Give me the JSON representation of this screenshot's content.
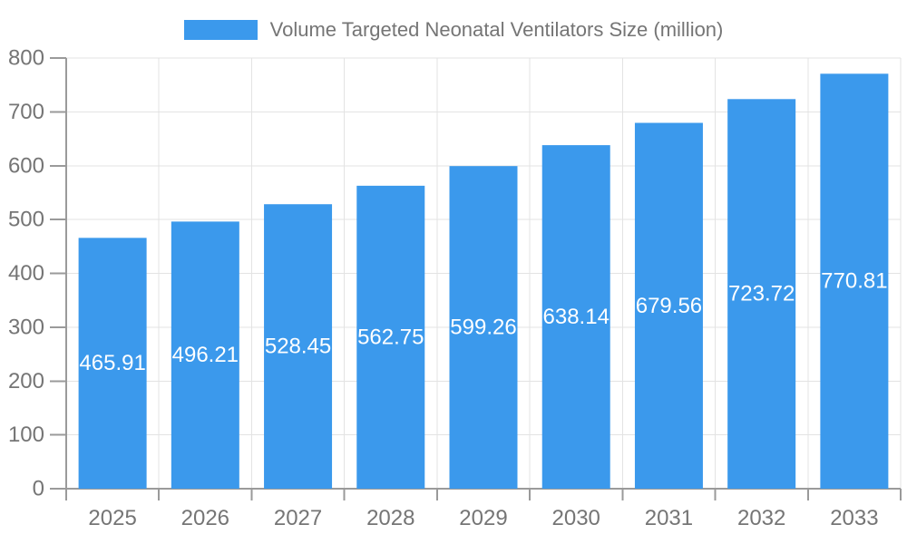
{
  "chart_data": {
    "type": "bar",
    "categories": [
      "2025",
      "2026",
      "2027",
      "2028",
      "2029",
      "2030",
      "2031",
      "2032",
      "2033"
    ],
    "series": [
      {
        "name": "Volume Targeted Neonatal Ventilators Size (million)",
        "values": [
          465.91,
          496.21,
          528.45,
          562.75,
          599.26,
          638.14,
          679.56,
          723.72,
          770.81
        ]
      }
    ],
    "value_labels": [
      "465.91",
      "496.21",
      "528.45",
      "562.75",
      "599.26",
      "638.14",
      "679.56",
      "723.72",
      "770.81"
    ],
    "title": "",
    "xlabel": "",
    "ylabel": "",
    "ylim": [
      0,
      800
    ],
    "ytick_step": 100,
    "ytick_labels": [
      "0",
      "100",
      "200",
      "300",
      "400",
      "500",
      "600",
      "700",
      "800"
    ],
    "grid": true,
    "legend_position": "top-center",
    "colors": {
      "bar": "#3b99ec",
      "axis": "#9a9a9a",
      "grid": "#e3e3e3",
      "tick_label": "#757575",
      "value_label": "#ffffff",
      "legend_text": "#757575",
      "background": "#ffffff"
    }
  }
}
